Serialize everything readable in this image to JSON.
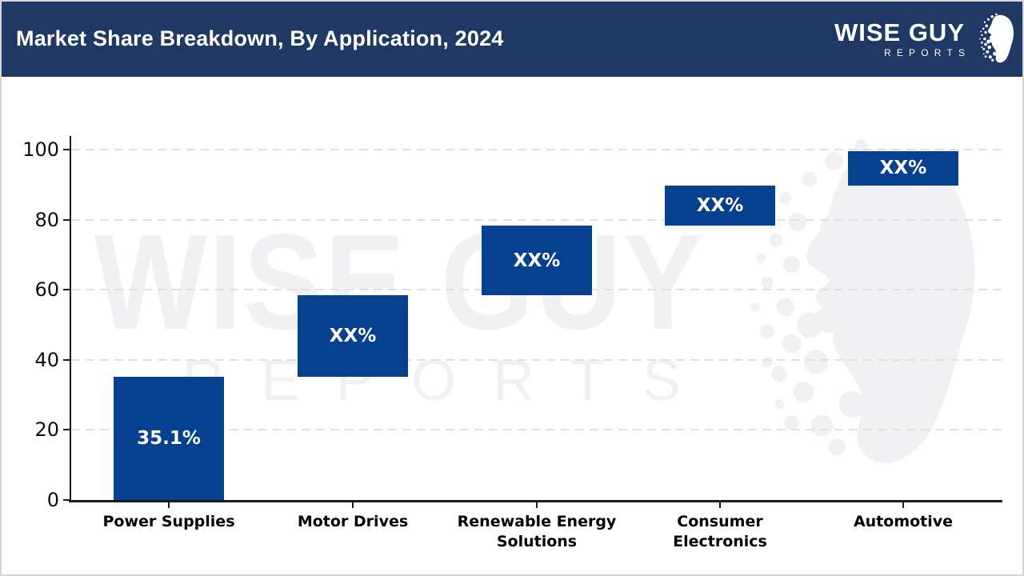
{
  "page": {
    "background": "#ffffff",
    "border_color": "#d6d6d6"
  },
  "header": {
    "title": "Market Share Breakdown, By Application, 2024",
    "background": "#1f3864",
    "text_color": "#ffffff",
    "logo": {
      "line1": "WISE GUY",
      "line2": "REPORTS"
    }
  },
  "watermark": {
    "line1": "WISE GUY",
    "line2": "REPORTS"
  },
  "chart_data": {
    "type": "bar",
    "subtype": "waterfall",
    "title": "Market Share Breakdown, By Application, 2024",
    "unit": "%",
    "categories": [
      "Power Supplies",
      "Motor Drives",
      "Renewable Energy Solutions",
      "Consumer Electronics",
      "Automotive"
    ],
    "category_label_lines": [
      [
        "Power Supplies"
      ],
      [
        "Motor Drives"
      ],
      [
        "Renewable Energy",
        "Solutions"
      ],
      [
        "Consumer",
        "Electronics"
      ],
      [
        "Automotive"
      ]
    ],
    "series": [
      {
        "name": "Market share",
        "segments": [
          {
            "category": "Power Supplies",
            "start": 0,
            "end": 35.1,
            "label": "35.1%"
          },
          {
            "category": "Motor Drives",
            "start": 35.1,
            "end": 58.5,
            "label": "XX%"
          },
          {
            "category": "Renewable Energy Solutions",
            "start": 58.5,
            "end": 78.2,
            "label": "XX%"
          },
          {
            "category": "Consumer Electronics",
            "start": 78.2,
            "end": 89.8,
            "label": "XX%"
          },
          {
            "category": "Automotive",
            "start": 89.8,
            "end": 99.6,
            "label": "XX%"
          }
        ]
      }
    ],
    "ylim": [
      0,
      100
    ],
    "yticks": [
      0,
      20,
      40,
      60,
      80,
      100
    ],
    "grid": "horizontal-dashed",
    "legend": "none",
    "bar_color": "#06418f",
    "bar_label_color": "#ffffff",
    "axis_color": "#1a1a1a"
  }
}
